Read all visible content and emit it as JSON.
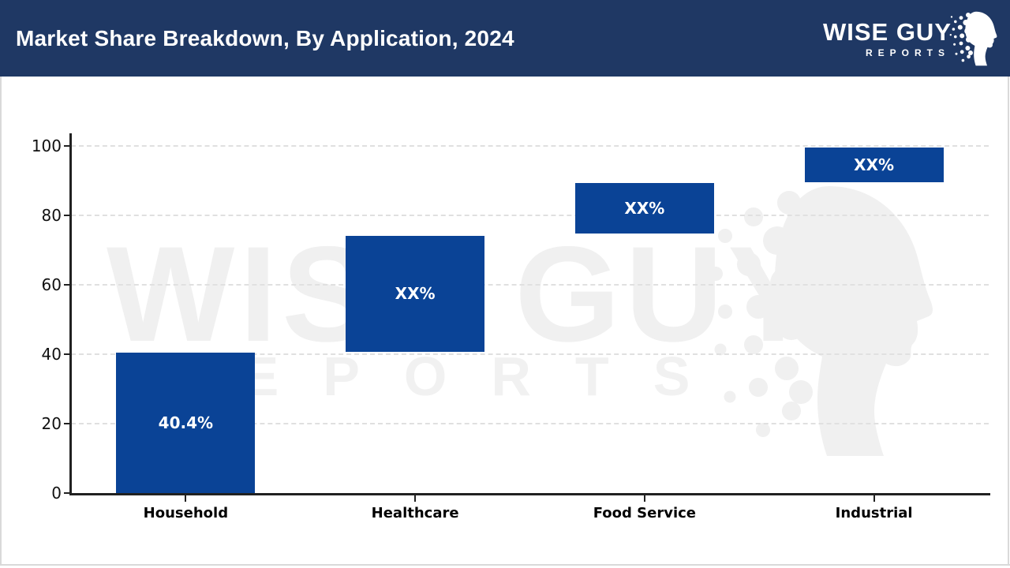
{
  "header": {
    "title": "Market Share Breakdown, By Application, 2024",
    "bg_color": "#1f3864",
    "logo": {
      "line1": "WISE GUY",
      "line2": "REPORTS"
    }
  },
  "watermark": {
    "line1": "WISE GUY",
    "line2": "REPORTS"
  },
  "chart_data": {
    "type": "bar",
    "subtype": "floating-waterfall-segments",
    "title": "Market Share Breakdown, By Application, 2024",
    "categories": [
      "Household",
      "Healthcare",
      "Food Service",
      "Industrial"
    ],
    "bars": [
      {
        "category": "Household",
        "label": "40.4%",
        "start": 0,
        "end": 40.4,
        "value": 40.4
      },
      {
        "category": "Healthcare",
        "label": "XX%",
        "start": 40.8,
        "end": 74.2,
        "value": 33.4
      },
      {
        "category": "Food Service",
        "label": "XX%",
        "start": 74.9,
        "end": 89.3,
        "value": 14.4
      },
      {
        "category": "Industrial",
        "label": "XX%",
        "start": 89.6,
        "end": 99.6,
        "value": 10.0
      }
    ],
    "y_ticks": [
      0,
      20,
      40,
      60,
      80,
      100
    ],
    "ylim": [
      0,
      103.5
    ],
    "xlabel": "",
    "ylabel": "",
    "grid": "horizontal-dashed",
    "legend": "none",
    "bar_color": "#0a4396",
    "bar_label_color": "#ffffff",
    "axis_color": "#212121",
    "grid_color": "#e0e0e0",
    "header_color": "#1f3864",
    "watermark_color": "#f0f0f0"
  }
}
